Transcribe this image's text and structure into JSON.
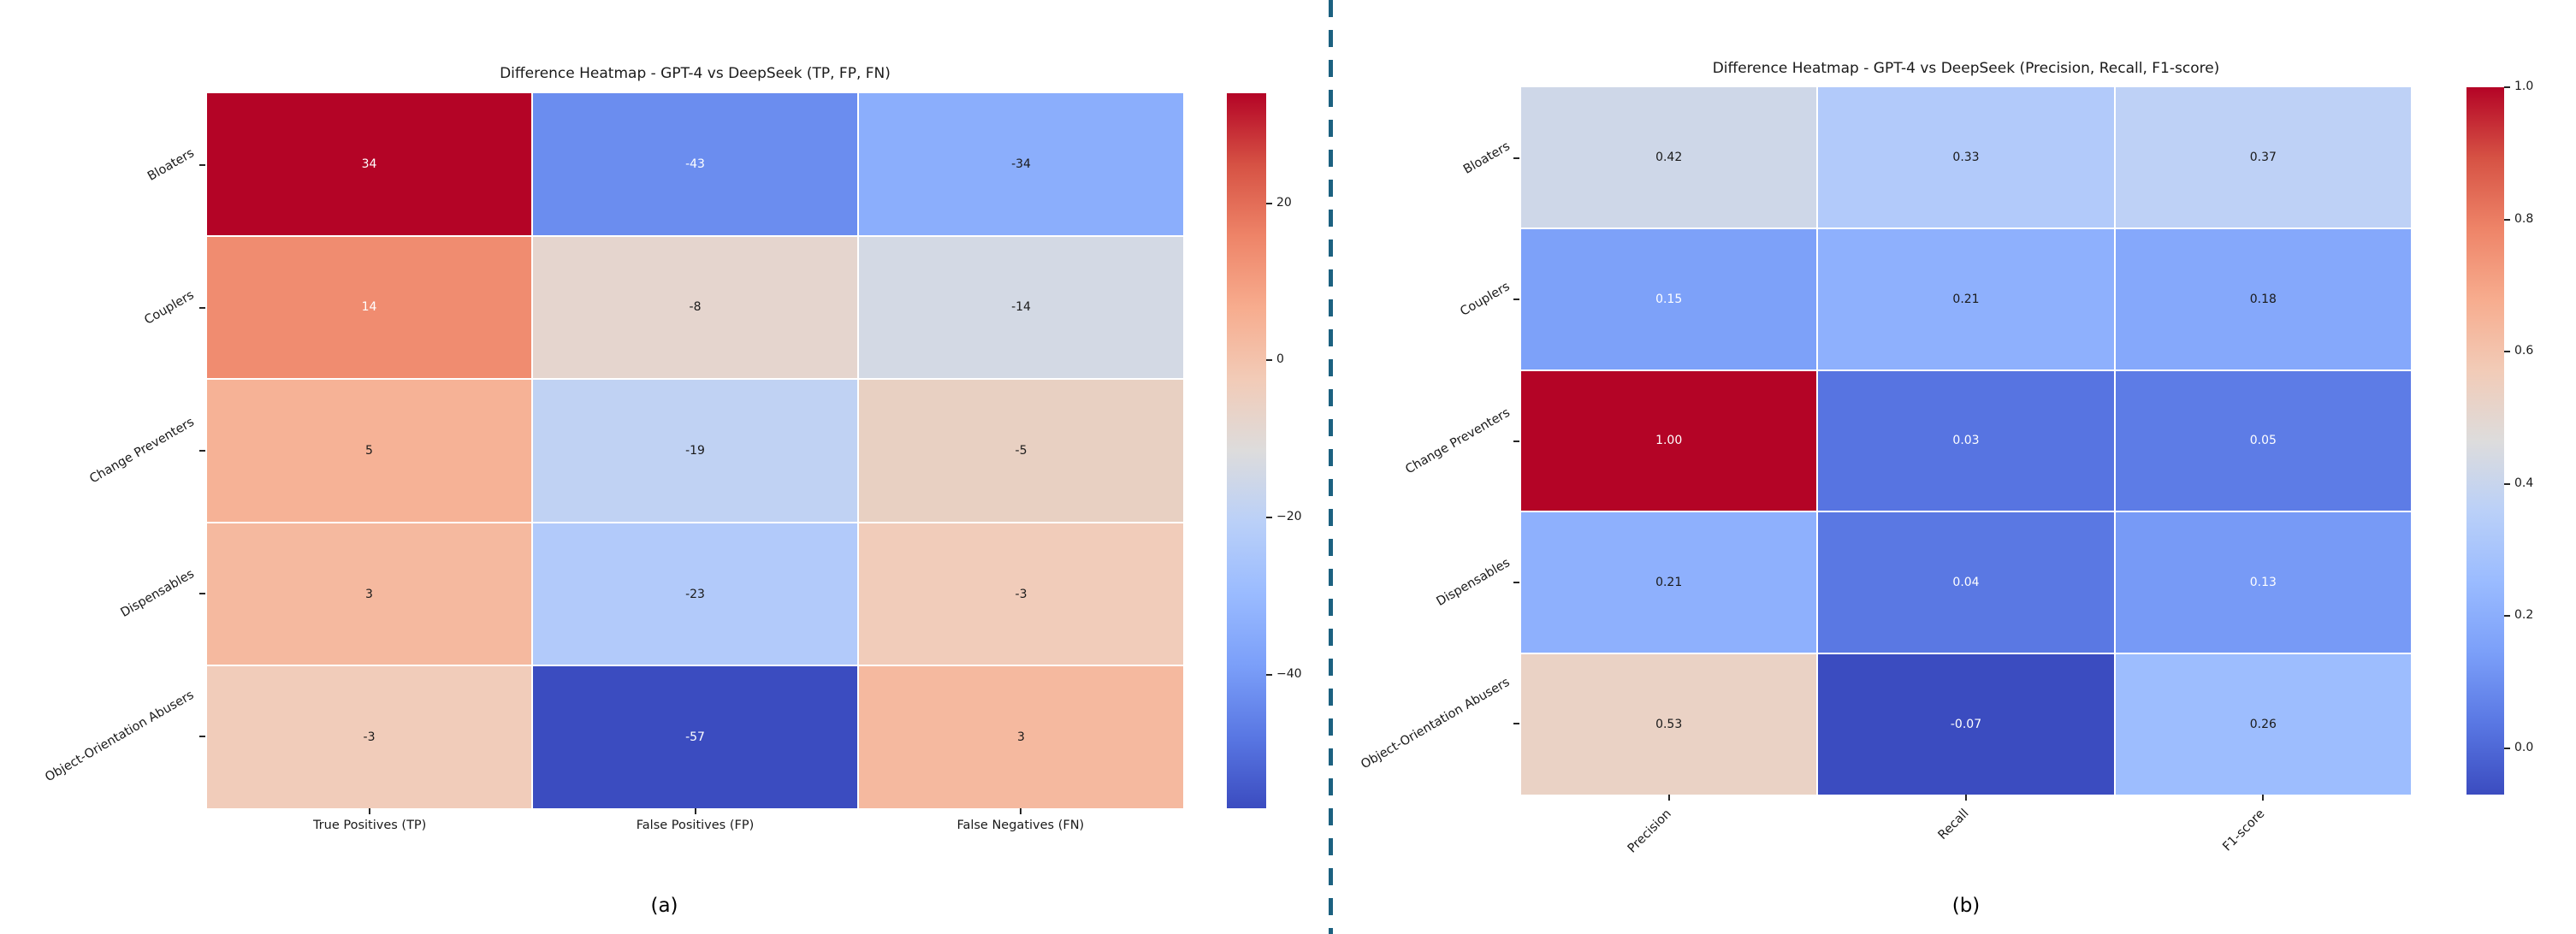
{
  "page": {
    "background": "#ffffff",
    "divider_color": "#1c6180"
  },
  "chart_data": [
    {
      "type": "heatmap",
      "panel": "a",
      "caption": "(a)",
      "title": "Difference Heatmap - GPT-4 vs DeepSeek (TP, FP, FN)",
      "rows": [
        "Bloaters",
        "Couplers",
        "Change Preventers",
        "Dispensables",
        "Object-Orientation Abusers"
      ],
      "columns": [
        "True Positives (TP)",
        "False Positives (FP)",
        "False Negatives (FN)"
      ],
      "values": [
        [
          34,
          -43,
          -34
        ],
        [
          14,
          -8,
          -14
        ],
        [
          5,
          -19,
          -5
        ],
        [
          3,
          -23,
          -3
        ],
        [
          -3,
          -57,
          3
        ]
      ],
      "cell_labels": [
        [
          "34",
          "-43",
          "-34"
        ],
        [
          "14",
          "-8",
          "-14"
        ],
        [
          "5",
          "-19",
          "-5"
        ],
        [
          "3",
          "-23",
          "-3"
        ],
        [
          "-3",
          "-57",
          "3"
        ]
      ],
      "cell_colors": [
        [
          "#b40426",
          "#6b8def",
          "#8baefc"
        ],
        [
          "#f08c70",
          "#e5d5ce",
          "#d3d9e4"
        ],
        [
          "#f6b296",
          "#c0d2f3",
          "#e8d0c2"
        ],
        [
          "#f5b99f",
          "#b2cafa",
          "#f1ccba"
        ],
        [
          "#f1ccba",
          "#3b4cc0",
          "#f5b99f"
        ]
      ],
      "cell_text_colors": [
        [
          "#ffffff",
          "#ffffff",
          "#1a1a1a"
        ],
        [
          "#ffffff",
          "#1a1a1a",
          "#1a1a1a"
        ],
        [
          "#1a1a1a",
          "#1a1a1a",
          "#1a1a1a"
        ],
        [
          "#1a1a1a",
          "#1a1a1a",
          "#1a1a1a"
        ],
        [
          "#1a1a1a",
          "#ffffff",
          "#1a1a1a"
        ]
      ],
      "colormap": "coolwarm",
      "vmin": -57,
      "vmax": 34,
      "colorbar_ticks": [
        "20",
        "0",
        "−20",
        "−40"
      ],
      "colormap_stops": [
        "#b40426",
        "#d65244",
        "#ee8468",
        "#f7ac8e",
        "#f2cbb7",
        "#dddcdc",
        "#bad0f8",
        "#9abbff",
        "#7b9ff9",
        "#5977e3",
        "#3b4cc0"
      ]
    },
    {
      "type": "heatmap",
      "panel": "b",
      "caption": "(b)",
      "title": "Difference Heatmap - GPT-4 vs DeepSeek (Precision, Recall, F1-score)",
      "rows": [
        "Bloaters",
        "Couplers",
        "Change Preventers",
        "Dispensables",
        "Object-Orientation Abusers"
      ],
      "columns": [
        "Precision",
        "Recall",
        "F1-score"
      ],
      "values": [
        [
          0.42,
          0.33,
          0.37
        ],
        [
          0.15,
          0.21,
          0.18
        ],
        [
          1.0,
          0.03,
          0.05
        ],
        [
          0.21,
          0.04,
          0.13
        ],
        [
          0.53,
          -0.07,
          0.26
        ]
      ],
      "cell_labels": [
        [
          "0.42",
          "0.33",
          "0.37"
        ],
        [
          "0.15",
          "0.21",
          "0.18"
        ],
        [
          "1.00",
          "0.03",
          "0.05"
        ],
        [
          "0.21",
          "0.04",
          "0.13"
        ],
        [
          "0.53",
          "-0.07",
          "0.26"
        ]
      ],
      "cell_colors": [
        [
          "#ced7e8",
          "#b2cafa",
          "#bed1f6"
        ],
        [
          "#7da1f9",
          "#8eb0fd",
          "#85a8fb"
        ],
        [
          "#b40426",
          "#5774e1",
          "#5d7ce6"
        ],
        [
          "#8eb0fd",
          "#5a78e3",
          "#779af6"
        ],
        [
          "#ead2c5",
          "#3b4cc0",
          "#9dbdfe"
        ]
      ],
      "cell_text_colors": [
        [
          "#1a1a1a",
          "#1a1a1a",
          "#1a1a1a"
        ],
        [
          "#ffffff",
          "#1a1a1a",
          "#1a1a1a"
        ],
        [
          "#ffffff",
          "#ffffff",
          "#ffffff"
        ],
        [
          "#1a1a1a",
          "#ffffff",
          "#ffffff"
        ],
        [
          "#1a1a1a",
          "#ffffff",
          "#1a1a1a"
        ]
      ],
      "colormap": "coolwarm",
      "vmin": -0.07,
      "vmax": 1.0,
      "colorbar_ticks": [
        "1.0",
        "0.8",
        "0.6",
        "0.4",
        "0.2",
        "0.0"
      ],
      "colormap_stops": [
        "#b40426",
        "#d65244",
        "#ee8468",
        "#f7ac8e",
        "#f2cbb7",
        "#dddcdc",
        "#bad0f8",
        "#9abbff",
        "#7b9ff9",
        "#5977e3",
        "#3b4cc0"
      ]
    }
  ]
}
